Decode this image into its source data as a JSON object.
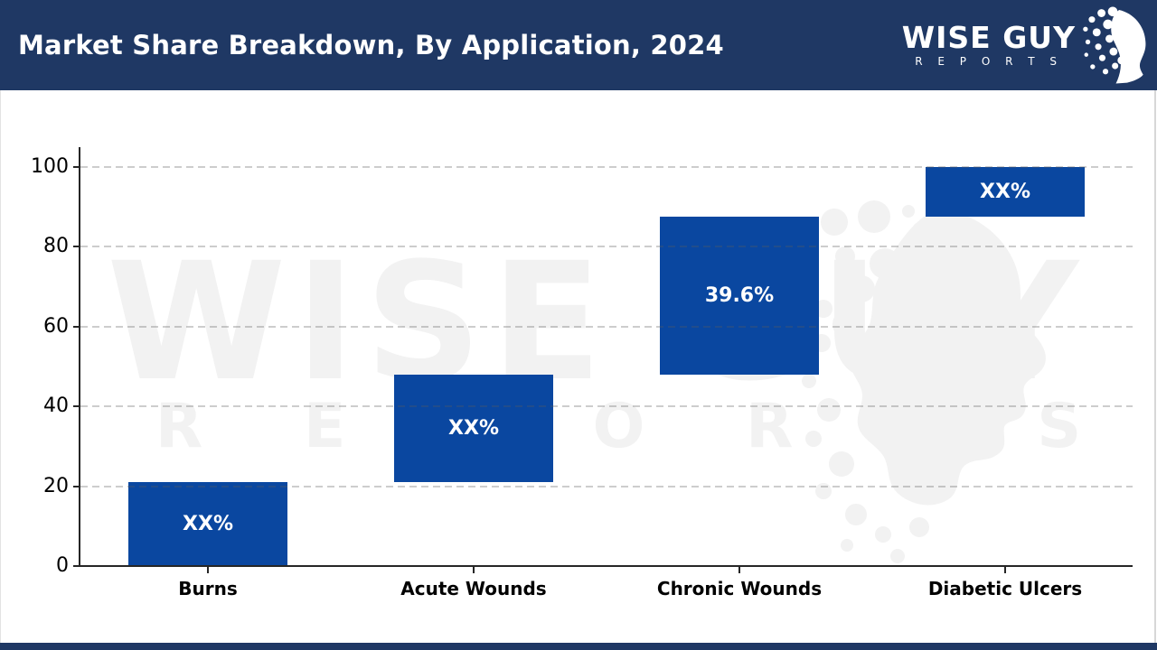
{
  "header": {
    "title": "Market Share Breakdown, By Application, 2024",
    "bg_color": "#1f3864",
    "logo": {
      "line1": "WISE GUY",
      "line2": "R E P O R T S"
    }
  },
  "watermark": {
    "line1": "WISE GUY",
    "line2": "R E P O R T S",
    "color": "#f2f2f2"
  },
  "chart_data": {
    "type": "bar",
    "subtype": "floating-waterfall-segments",
    "title": "Market Share Breakdown, By Application, 2024",
    "categories": [
      "Burns",
      "Acute Wounds",
      "Chronic Wounds",
      "Diabetic Ulcers"
    ],
    "segments": [
      {
        "category": "Burns",
        "start": 0,
        "end": 21,
        "label": "XX%"
      },
      {
        "category": "Acute Wounds",
        "start": 21,
        "end": 48,
        "label": "XX%"
      },
      {
        "category": "Chronic Wounds",
        "start": 48,
        "end": 87.6,
        "label": "39.6%"
      },
      {
        "category": "Diabetic Ulcers",
        "start": 87.6,
        "end": 100,
        "label": "XX%"
      }
    ],
    "ylim": [
      0,
      100
    ],
    "yticks": [
      0,
      20,
      40,
      60,
      80,
      100
    ],
    "grid": "horizontal-dashed",
    "legend": "none",
    "bar_color": "#0a47a0",
    "bar_label_color": "#ffffff",
    "axis_color": "#262626"
  }
}
